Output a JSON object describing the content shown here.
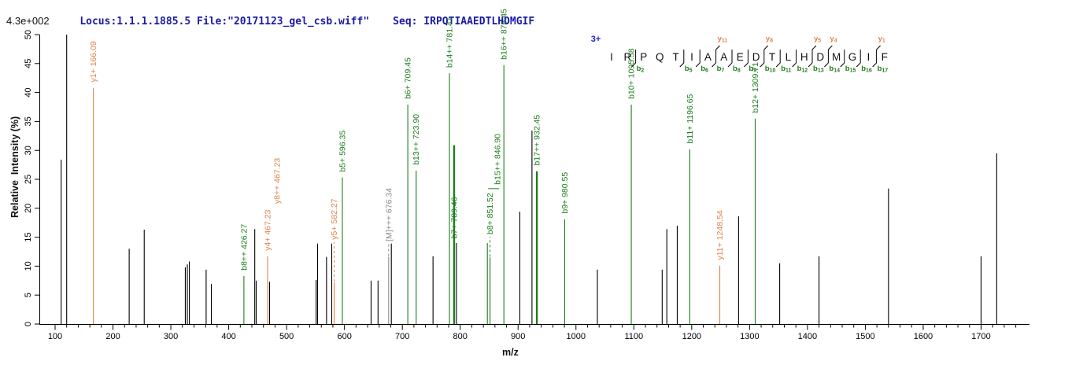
{
  "header": {
    "max_intensity": "4.3e+002",
    "title_locus_file": "Locus:1.1.1.1885.5 File:\"20171123_gel_csb.wiff\"",
    "title_seq": "Seq: IRPQTIAAEDTLHDMGIF"
  },
  "colors": {
    "b_ion_green": "#1e7d1e",
    "y_ion_orange": "#e2834e",
    "peak_black": "#000000",
    "precursor_gray": "#8a8a8a",
    "title_blue": "#1a1aa6",
    "charge_blue": "#2222cc"
  },
  "sequence_panel": {
    "charge": "3+",
    "residues": [
      "I",
      "R",
      "P",
      "Q",
      "T",
      "I",
      "A",
      "A",
      "E",
      "D",
      "T",
      "L",
      "H",
      "D",
      "M",
      "G",
      "I",
      "F"
    ],
    "b_ions": [
      2,
      5,
      6,
      7,
      8,
      9,
      10,
      11,
      12,
      13,
      14,
      15,
      16,
      17
    ],
    "y_ions": [
      11,
      8,
      5,
      4,
      1
    ]
  },
  "axes": {
    "x_label": "m/z",
    "y_label": "Relative  Intensity (%)",
    "x_ticks": [
      100,
      200,
      300,
      400,
      500,
      600,
      700,
      800,
      900,
      1000,
      1100,
      1200,
      1300,
      1400,
      1500,
      1600,
      1700
    ],
    "x_minor_step": 20,
    "x_range": [
      100,
      1780
    ],
    "y_ticks": [
      0,
      5,
      10,
      15,
      20,
      25,
      30,
      35,
      40,
      45,
      50
    ],
    "y_range": [
      0,
      50
    ]
  },
  "chart_data": {
    "type": "bar",
    "subtype": "ms2-stick-spectrum",
    "title": "Locus:1.1.1.1885.5 File:\"20171123_gel_csb.wiff\" Seq: IRPQTIAAEDTLHDMGIF",
    "xlabel": "m/z",
    "ylabel": "Relative  Intensity (%)",
    "xlim": [
      100,
      1780
    ],
    "ylim": [
      0,
      50
    ],
    "grid": false,
    "peaks": [
      {
        "mz": 110.5,
        "intensity": 28.4
      },
      {
        "mz": 120,
        "intensity": 50.0
      },
      {
        "mz": 166.09,
        "intensity": 40.8,
        "color": "y",
        "label": "y1+ 166.09"
      },
      {
        "mz": 228,
        "intensity": 13.0
      },
      {
        "mz": 254,
        "intensity": 16.3
      },
      {
        "mz": 325,
        "intensity": 9.8
      },
      {
        "mz": 328.5,
        "intensity": 10.3
      },
      {
        "mz": 332,
        "intensity": 10.8
      },
      {
        "mz": 361,
        "intensity": 9.4
      },
      {
        "mz": 370,
        "intensity": 6.9
      },
      {
        "mz": 426.27,
        "intensity": 8.3,
        "color": "b",
        "label": "b8++ 426.27"
      },
      {
        "mz": 445,
        "intensity": 16.4
      },
      {
        "mz": 447.5,
        "intensity": 7.5
      },
      {
        "mz": 467.23,
        "intensity": 11.7,
        "color": "y",
        "label": "y4+ 467.23"
      },
      {
        "mz": 467.23,
        "intensity": null,
        "color": "y",
        "label": "y8++ 467.23",
        "label_dx": 12,
        "label_pct": 20.5
      },
      {
        "mz": 470.5,
        "intensity": 7.3
      },
      {
        "mz": 551,
        "intensity": 7.6
      },
      {
        "mz": 553.5,
        "intensity": 13.9
      },
      {
        "mz": 569,
        "intensity": 11.6
      },
      {
        "mz": 578,
        "intensity": 13.9
      },
      {
        "mz": 582.27,
        "intensity": 7.2,
        "color": "y",
        "label": "y5+ 582.27",
        "label_pct": 14.3,
        "leader": "dashed"
      },
      {
        "mz": 596.35,
        "intensity": 25.3,
        "color": "b",
        "label": "b5+ 596.35"
      },
      {
        "mz": 646,
        "intensity": 7.5
      },
      {
        "mz": 658,
        "intensity": 7.5
      },
      {
        "mz": 676.34,
        "intensity": 11.6,
        "color": "precursor",
        "label": "[M]+++ 676.34",
        "label_pct": 14.0,
        "leader": "dashed"
      },
      {
        "mz": 681,
        "intensity": 13.9
      },
      {
        "mz": 709.45,
        "intensity": 37.9,
        "color": "b",
        "label": "b6+ 709.45"
      },
      {
        "mz": 723.9,
        "intensity": 26.5,
        "color": "b",
        "label": "b13++ 723.90"
      },
      {
        "mz": 753,
        "intensity": 11.7
      },
      {
        "mz": 781.41,
        "intensity": 43.3,
        "color": "b",
        "label": "b14++ 781.41"
      },
      {
        "mz": 789.46,
        "intensity": 30.9,
        "color": "b",
        "label": "b7+ 789.46",
        "label_pct": 14.5,
        "thick": true
      },
      {
        "mz": 793.5,
        "intensity": 14.0
      },
      {
        "mz": 846.9,
        "intensity": 14.0,
        "color": "b",
        "label": "b15++ 846.90",
        "label_dx": 13,
        "label_pct": 23.8,
        "leader": "horizontal"
      },
      {
        "mz": 851.52,
        "intensity": 11.5,
        "color": "b",
        "label": "b8+ 851.52",
        "label_pct": 15.2,
        "leader": "dashed"
      },
      {
        "mz": 875.45,
        "intensity": 44.7,
        "color": "b",
        "label": "b16++ 875.45"
      },
      {
        "mz": 903,
        "intensity": 19.4
      },
      {
        "mz": 924,
        "intensity": 33.4
      },
      {
        "mz": 932.45,
        "intensity": 26.4,
        "color": "b",
        "label": "b17++ 932.45",
        "thick": true
      },
      {
        "mz": 980.55,
        "intensity": 18.1,
        "color": "b",
        "label": "b9+ 980.55"
      },
      {
        "mz": 1037,
        "intensity": 9.4
      },
      {
        "mz": 1095.58,
        "intensity": 37.9,
        "color": "b",
        "label": "b10+ 1095.58"
      },
      {
        "mz": 1149,
        "intensity": 9.4
      },
      {
        "mz": 1157,
        "intensity": 16.4
      },
      {
        "mz": 1175,
        "intensity": 17.0
      },
      {
        "mz": 1196.65,
        "intensity": 30.2,
        "color": "b",
        "label": "b11+ 1196.65"
      },
      {
        "mz": 1248.54,
        "intensity": 10.1,
        "color": "y",
        "label": "y11+ 1248.54"
      },
      {
        "mz": 1281,
        "intensity": 18.6
      },
      {
        "mz": 1309.71,
        "intensity": 35.5,
        "color": "b",
        "label": "b12+ 1309.71"
      },
      {
        "mz": 1352,
        "intensity": 10.5
      },
      {
        "mz": 1420,
        "intensity": 11.7
      },
      {
        "mz": 1540,
        "intensity": 23.4
      },
      {
        "mz": 1700,
        "intensity": 11.7
      },
      {
        "mz": 1727,
        "intensity": 29.5
      }
    ]
  }
}
